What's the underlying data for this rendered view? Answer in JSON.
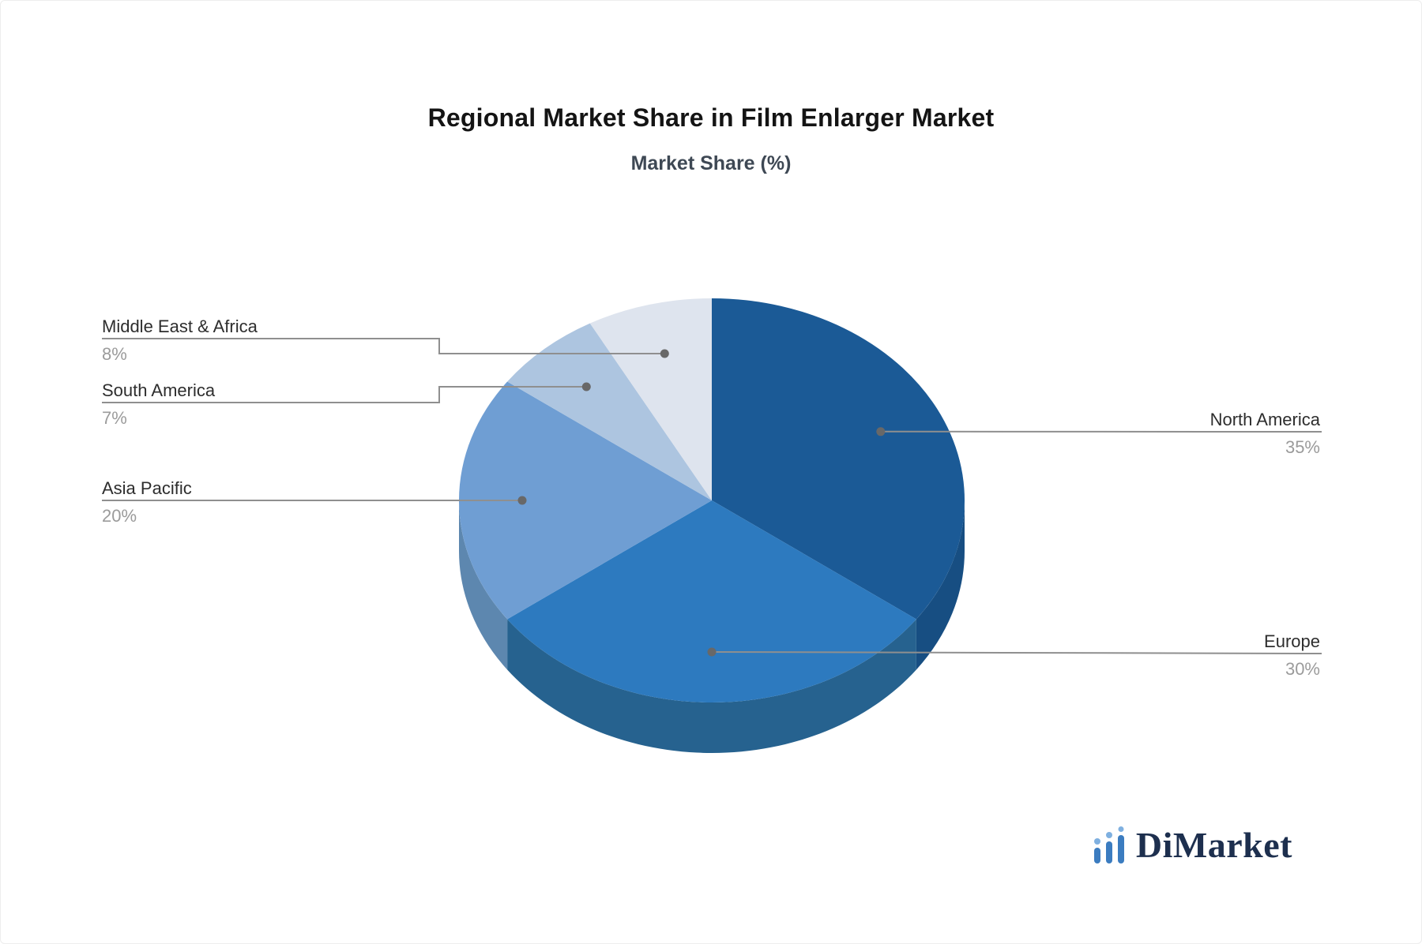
{
  "title": "Regional Market Share in Film Enlarger Market",
  "subtitle": "Market Share (%)",
  "logo": {
    "text": "DiMarket"
  },
  "chart_data": {
    "type": "pie",
    "title": "Regional Market Share in Film Enlarger Market",
    "subtitle": "Market Share (%)",
    "unit": "%",
    "style": "3d",
    "start_angle_deg": 90,
    "direction": "clockwise",
    "slices": [
      {
        "label": "North America",
        "value": 35,
        "pct_label": "35%",
        "color": "#1b5a96",
        "side_color": "#174e82"
      },
      {
        "label": "Europe",
        "value": 30,
        "pct_label": "30%",
        "color": "#2d7abf",
        "side_color": "#26628f"
      },
      {
        "label": "Asia Pacific",
        "value": 20,
        "pct_label": "20%",
        "color": "#6f9ed3",
        "side_color": "#5d87af"
      },
      {
        "label": "South America",
        "value": 7,
        "pct_label": "7%",
        "color": "#adc5e0"
      },
      {
        "label": "Middle East & Africa",
        "value": 8,
        "pct_label": "8%",
        "color": "#dee4ee"
      }
    ],
    "label_name_color": "#2d2d2d",
    "label_pct_color": "#9b9b9b",
    "leader_line_color": "#8f8f8f",
    "leader_dot_color": "#686868"
  }
}
